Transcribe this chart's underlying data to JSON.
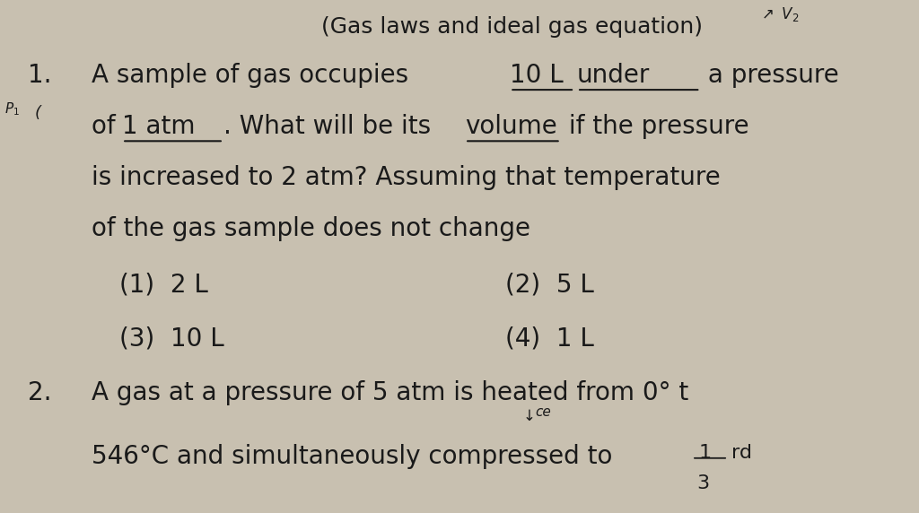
{
  "bg_color": "#c8c0b0",
  "title_text": "(Gas laws and ideal gas equation)",
  "q1_line1a": "A sample of gas occupies ",
  "q1_line1b": "10 L",
  "q1_line1c": " ",
  "q1_line1d": "under",
  "q1_line1e": " a pressure",
  "q1_line2a": "of ",
  "q1_line2b": "1 atm",
  "q1_line2c": ". What will be its ",
  "q1_line2d": "volume",
  "q1_line2e": " if the pressure",
  "q1_line3": "is increased to 2 atm? Assuming that temperature",
  "q1_line4": "of the gas sample does not change",
  "opt1": "(1)  2 L",
  "opt2": "(2)  5 L",
  "opt3": "(3)  10 L",
  "opt4": "(4)  1 L",
  "q2_line1": "A gas at a pressure of 5 atm is heated from 0° t",
  "q2_line2": "546°C and simultaneously compressed to ",
  "font_size_main": 20,
  "font_size_title": 18,
  "text_color": "#1a1a1a"
}
